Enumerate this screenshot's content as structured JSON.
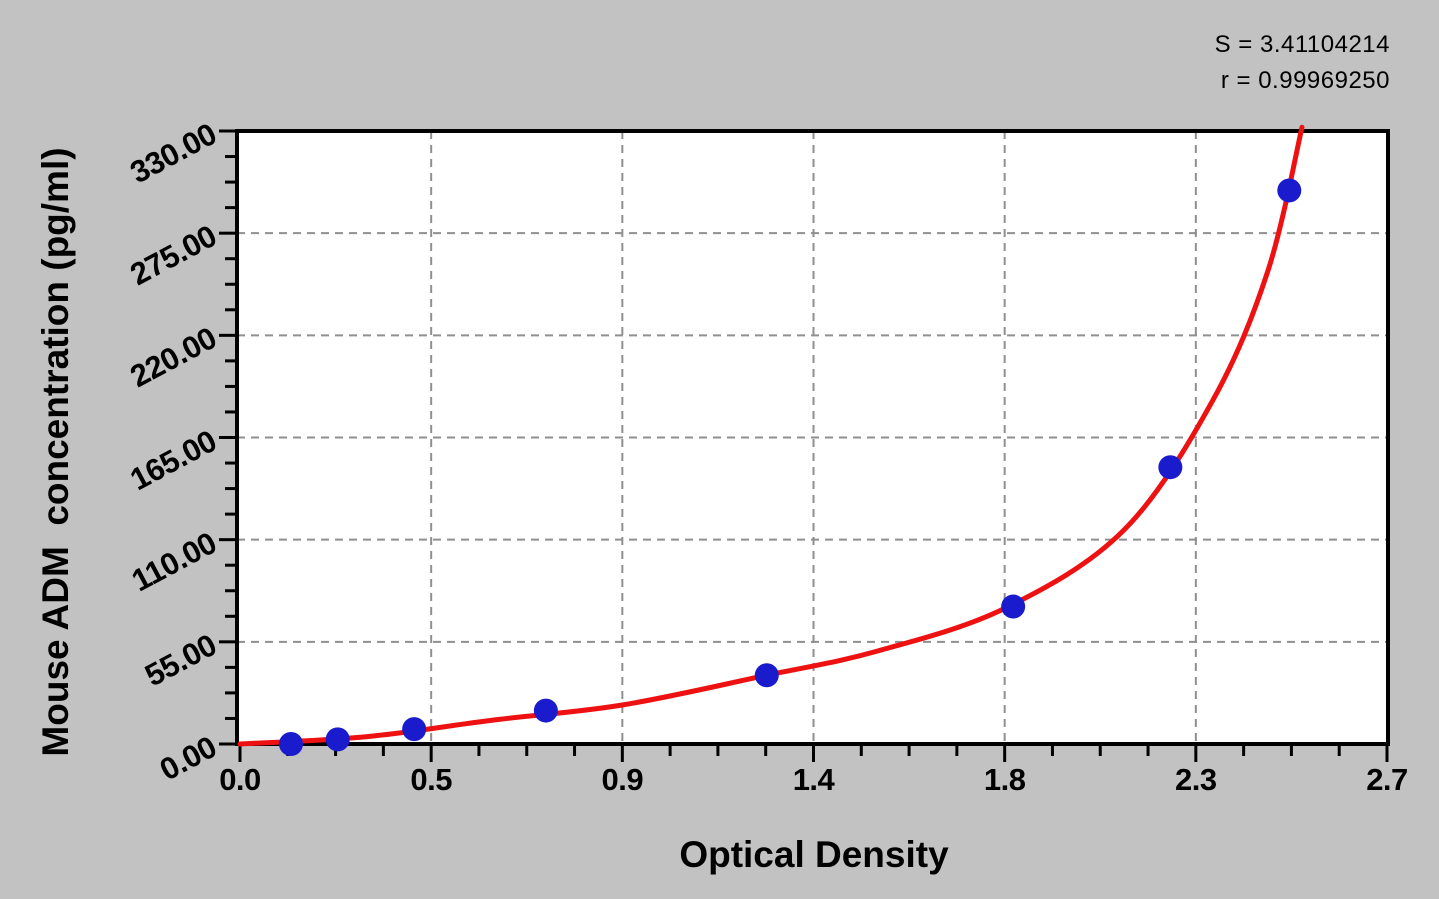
{
  "annotations": {
    "s_text": "S = 3.41104214",
    "r_text": "r = 0.99969250"
  },
  "chart_data": {
    "type": "scatter",
    "title": "",
    "xlabel": "Optical Density",
    "ylabel": "Mouse ADM  concentration (pg/ml)",
    "xlim": [
      0,
      2.7
    ],
    "ylim": [
      0,
      330
    ],
    "grid": true,
    "grid_style": "dashed",
    "legend": "none",
    "x_major_ticks": [
      0,
      0.45,
      0.9,
      1.35,
      1.8,
      2.25,
      2.7
    ],
    "x_tick_labels": [
      "0.0",
      "0.5",
      "0.9",
      "1.4",
      "1.8",
      "2.3",
      "2.7"
    ],
    "x_minor_divisions": 4,
    "y_major_ticks": [
      0,
      55,
      110,
      165,
      220,
      275,
      330
    ],
    "y_tick_labels": [
      "0.00",
      "55.00",
      "110.00",
      "165.00",
      "220.00",
      "275.00",
      "330.00"
    ],
    "y_minor_divisions": 4,
    "series": [
      {
        "name": "standard-points",
        "type": "scatter",
        "points": [
          [
            0.12,
            0
          ],
          [
            0.23,
            2.5
          ],
          [
            0.41,
            8
          ],
          [
            0.72,
            18
          ],
          [
            1.24,
            37
          ],
          [
            1.82,
            74
          ],
          [
            2.19,
            149
          ],
          [
            2.47,
            298
          ]
        ]
      },
      {
        "name": "fitted-curve",
        "type": "line",
        "points": [
          [
            0,
            0
          ],
          [
            0.3,
            4
          ],
          [
            0.6,
            13
          ],
          [
            0.9,
            21
          ],
          [
            1.24,
            37
          ],
          [
            1.5,
            50
          ],
          [
            1.8,
            73
          ],
          [
            2.08,
            115
          ],
          [
            2.29,
            185
          ],
          [
            2.42,
            255
          ],
          [
            2.5,
            332
          ]
        ]
      }
    ]
  },
  "colors": {
    "background": "#c2c2c2",
    "plot_background": "#ffffff",
    "axis": "#000000",
    "grid": "#8f8f8f",
    "curve": "#ee1111",
    "marker": "#1b1bce",
    "text": "#000000"
  }
}
